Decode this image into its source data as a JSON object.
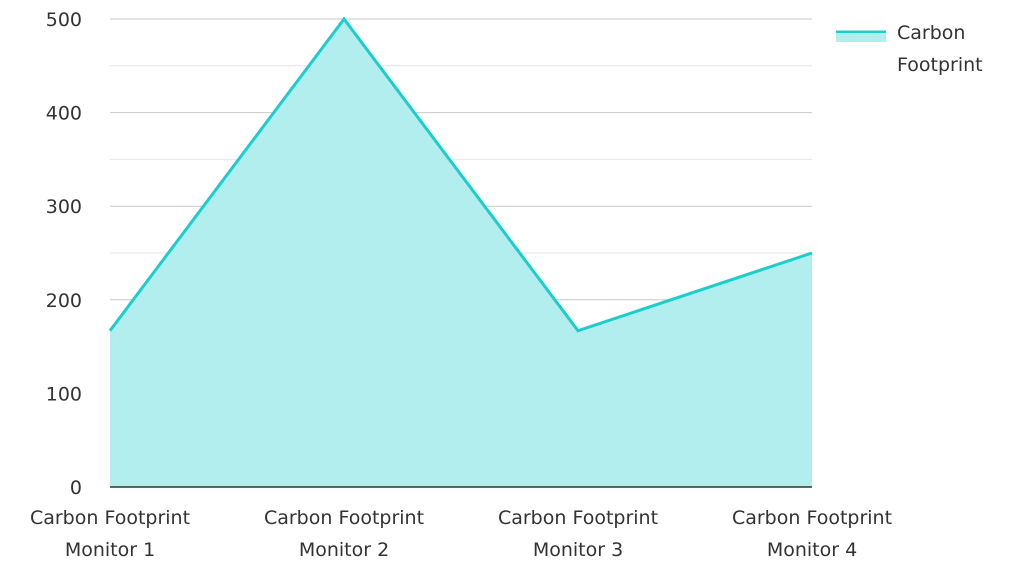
{
  "chart_data": {
    "type": "area",
    "categories": [
      [
        "Carbon Footprint",
        "Monitor 1"
      ],
      [
        "Carbon Footprint",
        "Monitor 2"
      ],
      [
        "Carbon Footprint",
        "Monitor 3"
      ],
      [
        "Carbon Footprint",
        "Monitor 4"
      ]
    ],
    "series": [
      {
        "name": "Carbon Footprint",
        "values": [
          167,
          500,
          167,
          250
        ],
        "line_color": "#1ccdcd",
        "fill_color": "#b2eeee"
      }
    ],
    "ylim": [
      0,
      500
    ],
    "yticks": [
      "0",
      "100",
      "200",
      "300",
      "400",
      "500"
    ],
    "grid": true,
    "legend": {
      "placement": "top-right",
      "label_lines": [
        "Carbon",
        "Footprint"
      ]
    }
  }
}
